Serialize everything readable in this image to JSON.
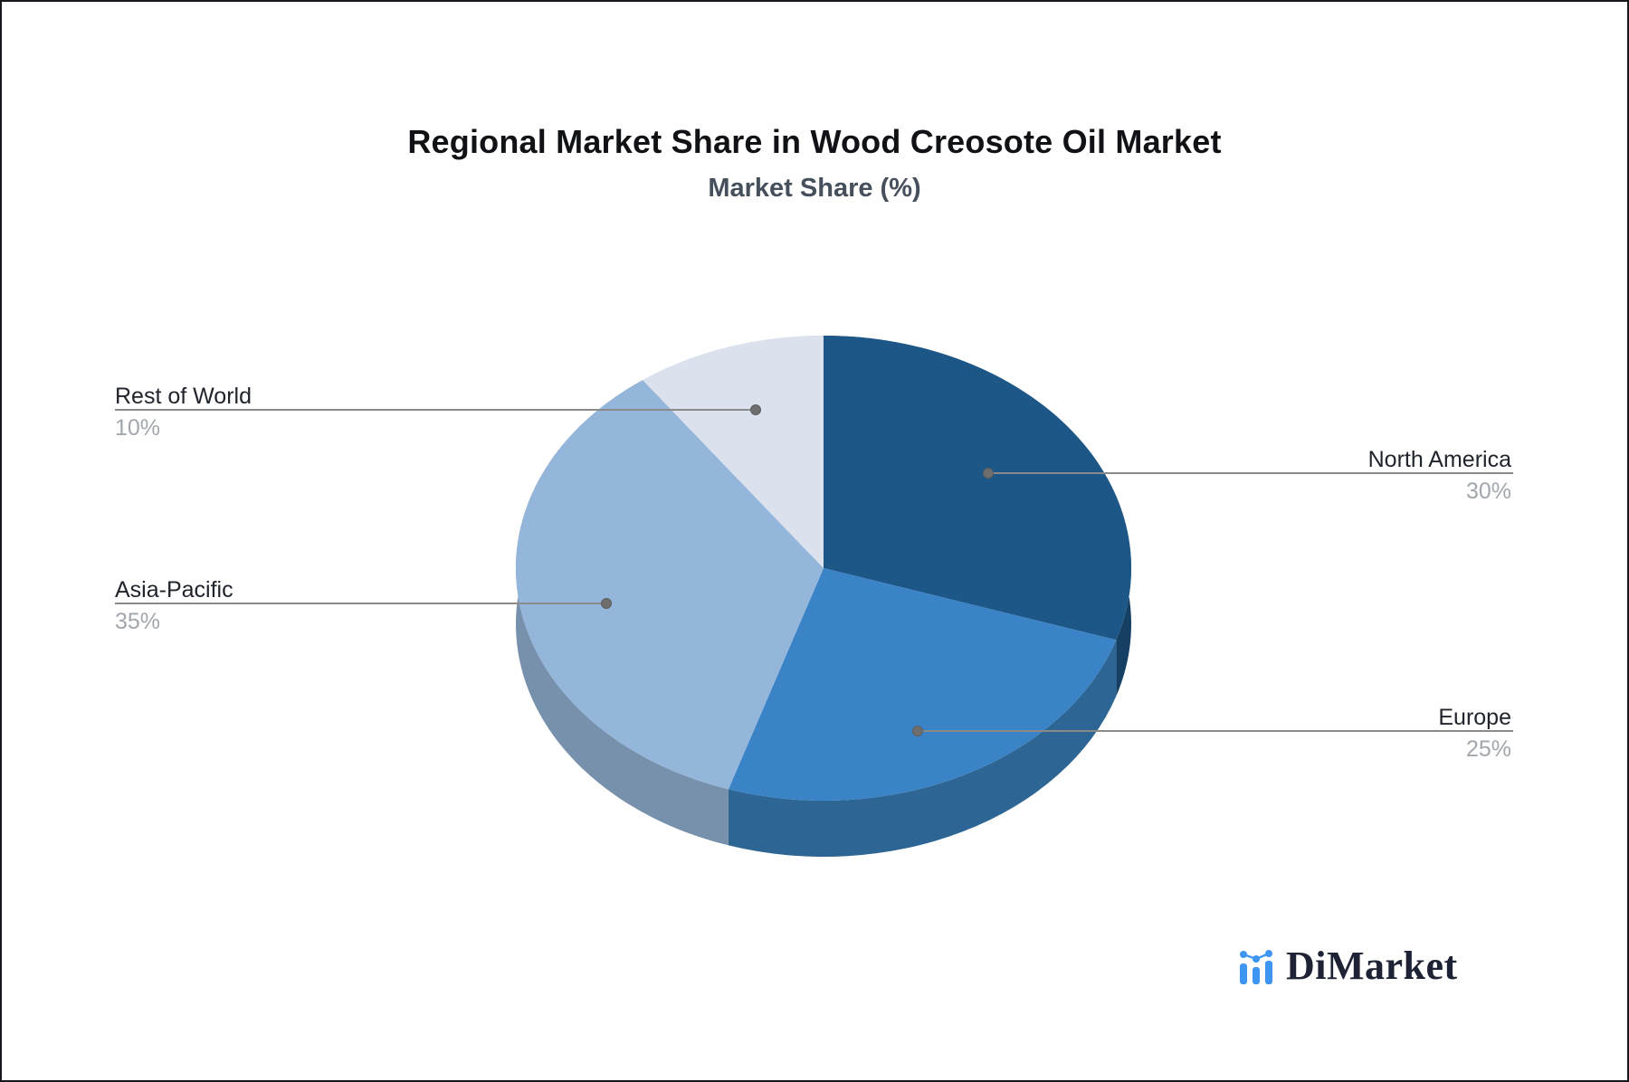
{
  "header": {
    "title": "Regional Market Share in Wood Creosote Oil Market",
    "subtitle": "Market Share (%)"
  },
  "chart_data": {
    "type": "pie",
    "title": "Regional Market Share in Wood Creosote Oil Market",
    "subtitle": "Market Share (%)",
    "unit": "%",
    "start_angle": "12-o-clock",
    "direction": "clockwise",
    "style": "3d",
    "legend": false,
    "slices": [
      {
        "label": "North America",
        "value": 30,
        "display": "30%",
        "color": "#1d5788",
        "side_color": "#153f63",
        "callout_side": "right"
      },
      {
        "label": "Europe",
        "value": 25,
        "display": "25%",
        "color": "#3a83c6",
        "side_color": "#2d6694",
        "callout_side": "right"
      },
      {
        "label": "Asia-Pacific",
        "value": 35,
        "display": "35%",
        "color": "#94b6da",
        "side_color": "#7790ab",
        "callout_side": "left"
      },
      {
        "label": "Rest of World",
        "value": 10,
        "display": "10%",
        "color": "#dbe2ee",
        "side_color": "#b9c4d6",
        "callout_side": "left"
      }
    ],
    "label_colors": {
      "name_color": "#20242c",
      "value_color": "#a2a7ae",
      "leader_line_color": "#8a8a8a",
      "leader_dot_color": "#6e6e6e"
    }
  },
  "branding": {
    "logo_text": "DiMarket",
    "logo_icon": "bar-line-chart-icon",
    "logo_accent_color": "#3f96f2",
    "logo_text_color": "#1d2335"
  }
}
